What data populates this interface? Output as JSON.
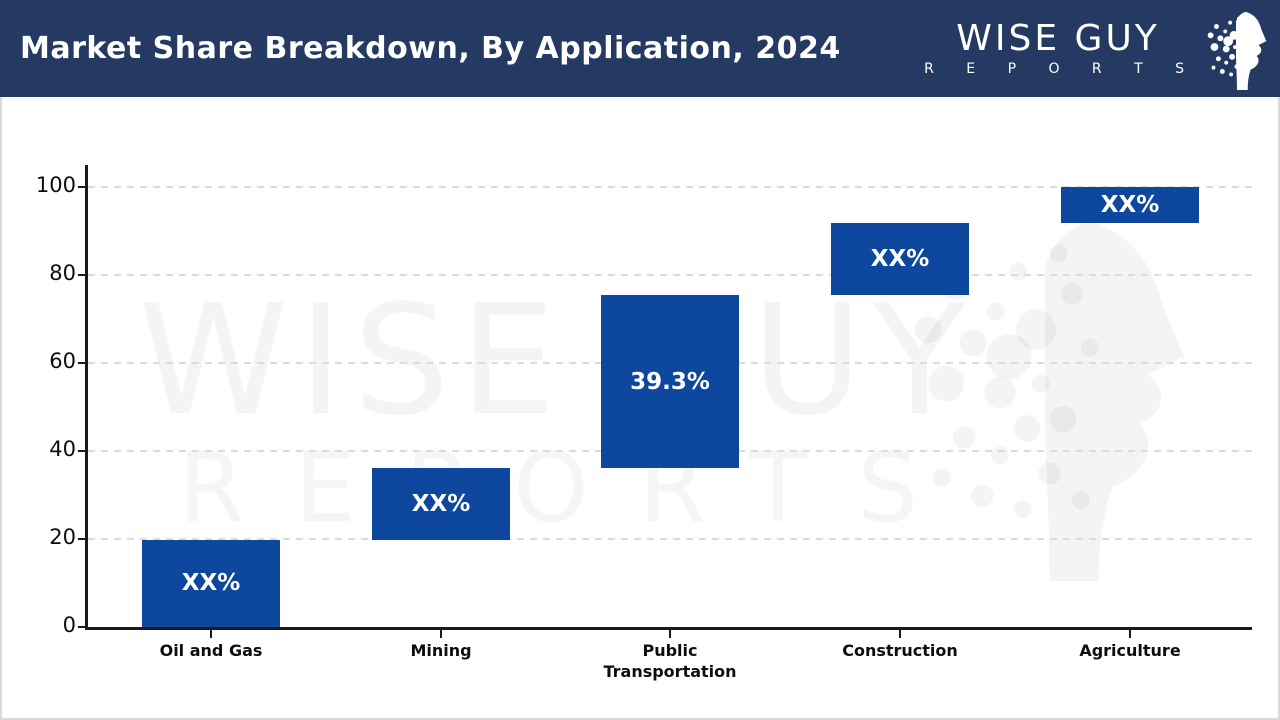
{
  "header": {
    "title": "Market Share Breakdown, By Application, 2024",
    "bg_color": "#243A62",
    "logo": {
      "line1": "WISE GUY",
      "line2": "R E P O R T S"
    }
  },
  "watermark": {
    "line1": "WISE GUY",
    "line2": "REPORTS"
  },
  "chart_data": {
    "type": "bar",
    "subtype": "waterfall-floating-segments",
    "title": "Market Share Breakdown, By Application, 2024",
    "categories": [
      "Oil and Gas",
      "Mining",
      "Public Transportation",
      "Construction",
      "Agriculture"
    ],
    "category_lines": [
      [
        "Oil and Gas"
      ],
      [
        "Mining"
      ],
      [
        "Public",
        "Transportation"
      ],
      [
        "Construction"
      ],
      [
        "Agriculture"
      ]
    ],
    "segments": [
      {
        "category": "Oil and Gas",
        "start": 0,
        "end": 19.8,
        "label": "XX%"
      },
      {
        "category": "Mining",
        "start": 19.8,
        "end": 36.1,
        "label": "XX%"
      },
      {
        "category": "Public Transportation",
        "start": 36.1,
        "end": 75.4,
        "label": "39.3%"
      },
      {
        "category": "Construction",
        "start": 75.4,
        "end": 91.8,
        "label": "XX%"
      },
      {
        "category": "Agriculture",
        "start": 91.8,
        "end": 100,
        "label": "XX%"
      }
    ],
    "yticks": [
      0,
      20,
      40,
      60,
      80,
      100
    ],
    "ylim": [
      0,
      105
    ],
    "xlabel": "",
    "ylabel": "",
    "grid": "horizontal-dashed",
    "legend": "none",
    "bar_color": "#0D479E",
    "label_color": "#ffffff"
  }
}
